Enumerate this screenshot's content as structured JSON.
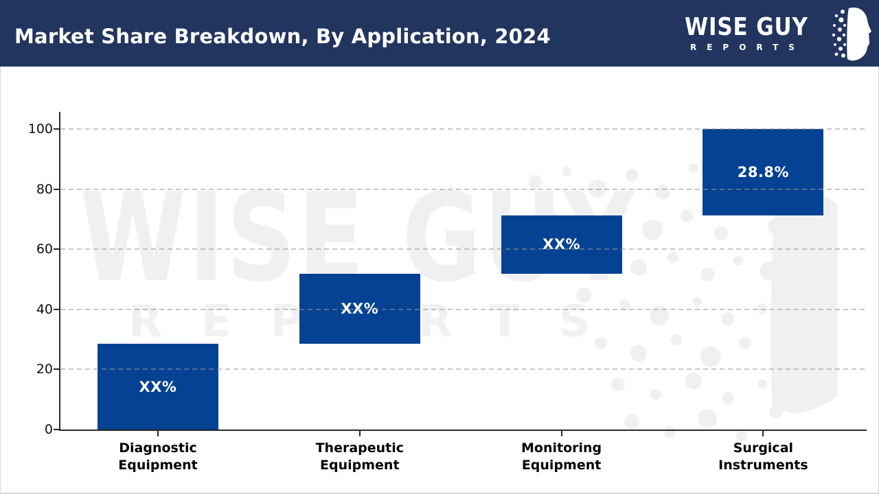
{
  "header": {
    "title": "Market Share Breakdown, By Application, 2024",
    "logo": {
      "name": "WISE GUY",
      "sub": "REPORTS"
    }
  },
  "watermark": {
    "line1": "WISE GUY",
    "line2": "REPORTS"
  },
  "chart_data": {
    "type": "bar",
    "subtype": "waterfall-stacked-segments",
    "title": "Market Share Breakdown, By Application, 2024",
    "categories": [
      "Diagnostic\nEquipment",
      "Therapeutic\nEquipment",
      "Monitoring\nEquipment",
      "Surgical\nInstruments"
    ],
    "segments": [
      {
        "category": "Diagnostic Equipment",
        "start": 0,
        "end": 28.5,
        "value": 28.5,
        "value_label": "XX%"
      },
      {
        "category": "Therapeutic Equipment",
        "start": 28.5,
        "end": 51.9,
        "value": 23.4,
        "value_label": "XX%"
      },
      {
        "category": "Monitoring Equipment",
        "start": 51.9,
        "end": 71.2,
        "value": 19.3,
        "value_label": "XX%"
      },
      {
        "category": "Surgical Instruments",
        "start": 71.2,
        "end": 100,
        "value": 28.8,
        "value_label": "28.8%"
      }
    ],
    "xlabel": "",
    "ylabel": "",
    "ylim": [
      0,
      100
    ],
    "yticks": [
      0,
      20,
      40,
      60,
      80,
      100
    ],
    "grid": "horizontal-dashed",
    "legend": "none",
    "colors": {
      "bar": "#054293",
      "header_bg": "#21355f",
      "axis": "#2a2a2a",
      "watermark": "#f0f0f3",
      "value_label": "#ffffff"
    }
  }
}
